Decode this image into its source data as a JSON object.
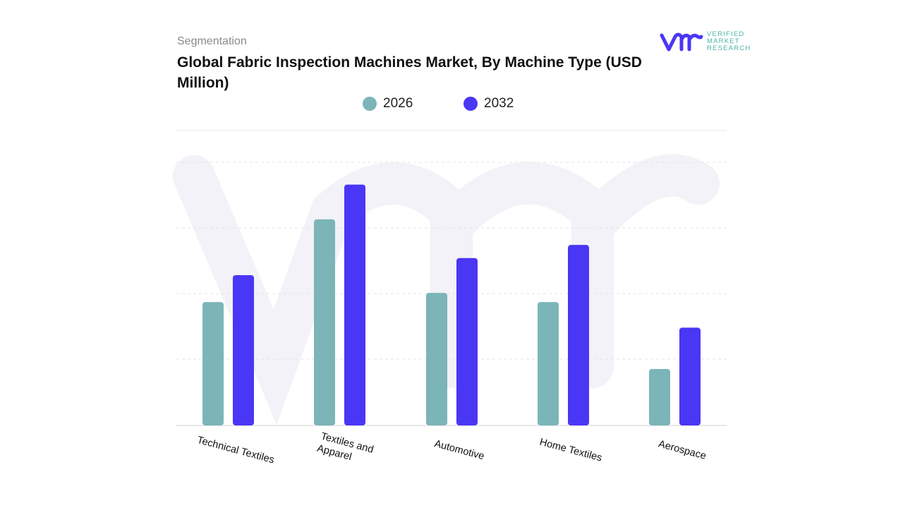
{
  "header": {
    "segment_label": "Segmentation",
    "title": "Global Fabric Inspection Machines Market, By Machine Type (USD Million)"
  },
  "logo": {
    "mark": "vmr",
    "text": "VERIFIED MARKET RESEARCH"
  },
  "colors": {
    "2026": "#7bb5b8",
    "2032": "#4a36f5"
  },
  "chart_data": {
    "type": "bar",
    "title": "Global Fabric Inspection Machines Market, By Machine Type (USD Million)",
    "categories": [
      "Technical Textiles",
      "Textiles and Apparel",
      "Automotive",
      "Home Textiles",
      "Aerospace"
    ],
    "series": [
      {
        "name": "2026",
        "values": [
          1.87,
          3.13,
          2.01,
          1.87,
          0.85
        ]
      },
      {
        "name": "2032",
        "values": [
          2.28,
          3.66,
          2.54,
          2.74,
          1.48
        ]
      }
    ],
    "xlabel": "",
    "ylabel": "",
    "ylim": [
      0,
      4
    ],
    "grid": true,
    "legend": "top",
    "y_axis_labels_shown": false
  }
}
